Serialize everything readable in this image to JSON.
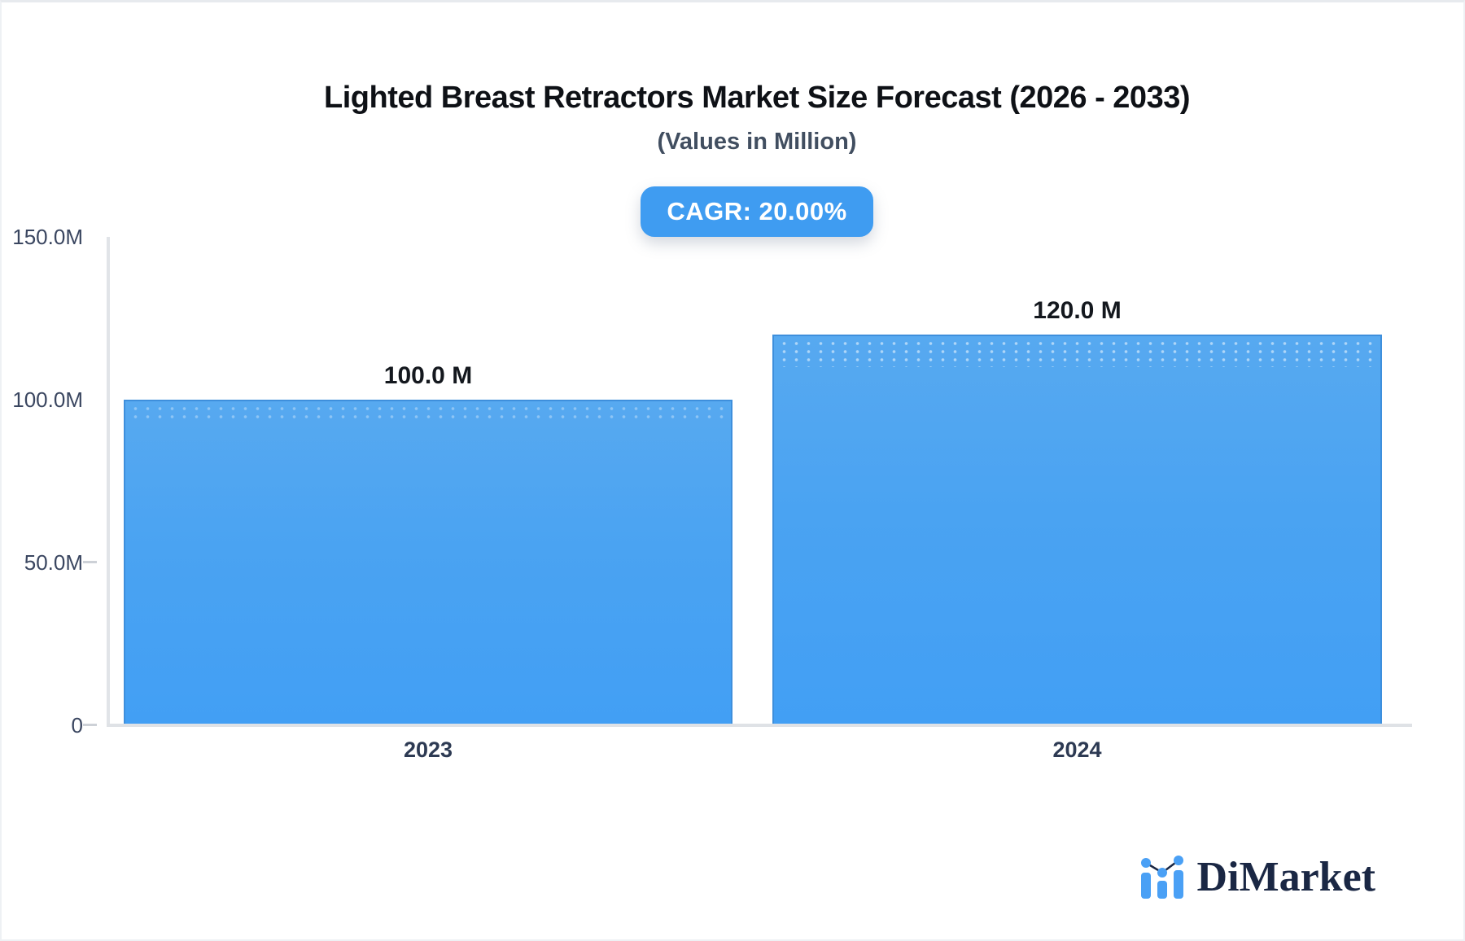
{
  "header": {
    "title": "Lighted Breast Retractors Market Size Forecast (2026 - 2033)",
    "subtitle": "(Values in Million)",
    "cagr_label": "CAGR: 20.00%"
  },
  "brand": {
    "name": "DiMarket"
  },
  "colors": {
    "bar_fill": "#4aa3f2",
    "bar_edge": "#3e8fdc",
    "badge_bg": "#3f9cf1",
    "axis_line": "#e1e4e8",
    "axis_text": "#3a4660",
    "title_text": "#0e1116",
    "logo_navy": "#1a2744",
    "logo_blue": "#4aa0f5"
  },
  "chart_data": {
    "type": "bar",
    "categories": [
      "2023",
      "2024"
    ],
    "values": [
      100.0,
      120.0
    ],
    "value_labels": [
      "100.0 M",
      "120.0 M"
    ],
    "y_tick_labels": [
      "150.0M",
      "100.0M",
      "50.0M",
      "0"
    ],
    "y_tick_values": [
      150,
      100,
      50,
      0
    ],
    "ylim": [
      0,
      150
    ],
    "xlabel": "",
    "ylabel": "",
    "grid": false,
    "legend": false,
    "annotations": [
      "CAGR: 20.00%"
    ]
  }
}
